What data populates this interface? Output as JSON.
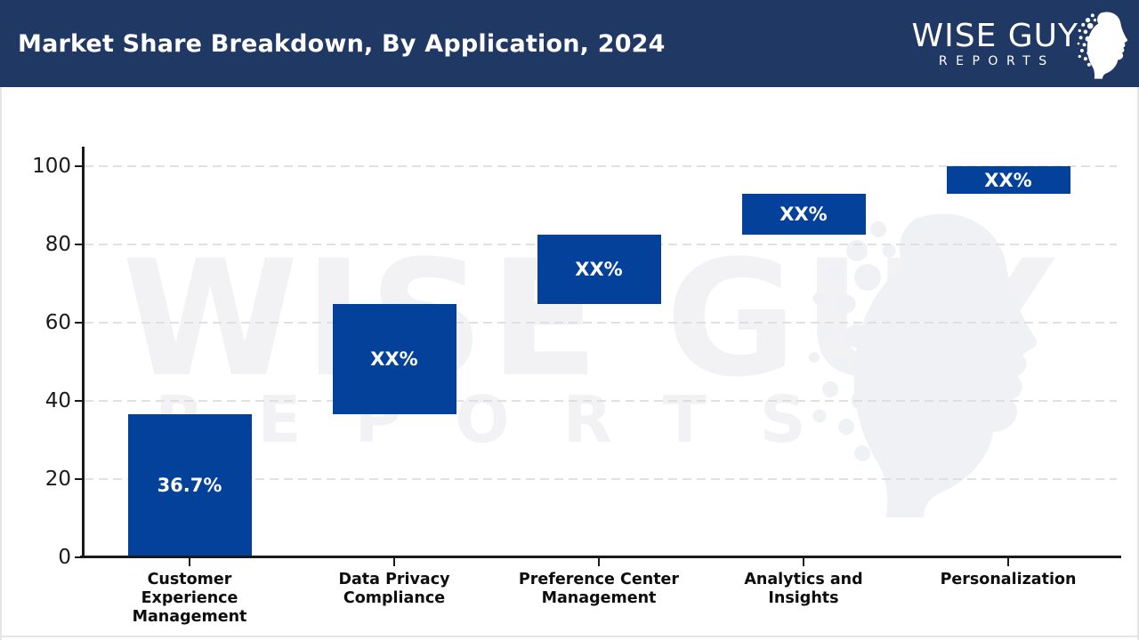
{
  "header": {
    "title": "Market Share Breakdown, By Application, 2024",
    "bg_color": "#1f3864",
    "brand": {
      "line1": "WISE GUY",
      "line2": "REPORTS"
    }
  },
  "watermark": {
    "line1": "WISE GUY",
    "line2": "REPORTS"
  },
  "chart_data": {
    "type": "bar",
    "subtype": "waterfall",
    "title": "Market Share Breakdown, By Application, 2024",
    "categories": [
      "Customer Experience Management",
      "Data Privacy Compliance",
      "Preference Center Management",
      "Analytics and Insights",
      "Personalization"
    ],
    "bars": [
      {
        "category_display": "Customer\nExperience\nManagement",
        "start": 0,
        "end": 36.7,
        "label": "36.7%"
      },
      {
        "category_display": "Data Privacy\nCompliance",
        "start": 36.7,
        "end": 64.7,
        "label": "XX%"
      },
      {
        "category_display": "Preference Center\nManagement",
        "start": 64.7,
        "end": 82.4,
        "label": "XX%"
      },
      {
        "category_display": "Analytics and\nInsights",
        "start": 82.4,
        "end": 92.9,
        "label": "XX%"
      },
      {
        "category_display": "Personalization",
        "start": 92.9,
        "end": 100,
        "label": "XX%"
      }
    ],
    "xlabel": "",
    "ylabel": "",
    "ylim": [
      0,
      100
    ],
    "yticks": [
      0,
      20,
      40,
      60,
      80,
      100
    ],
    "grid": "horizontal-dashed",
    "legend": "none",
    "bar_color": "#04419a",
    "bar_label_color": "#ffffff",
    "axis_color": "#1a1a1a",
    "gridline_color": "#e0e0e0"
  }
}
